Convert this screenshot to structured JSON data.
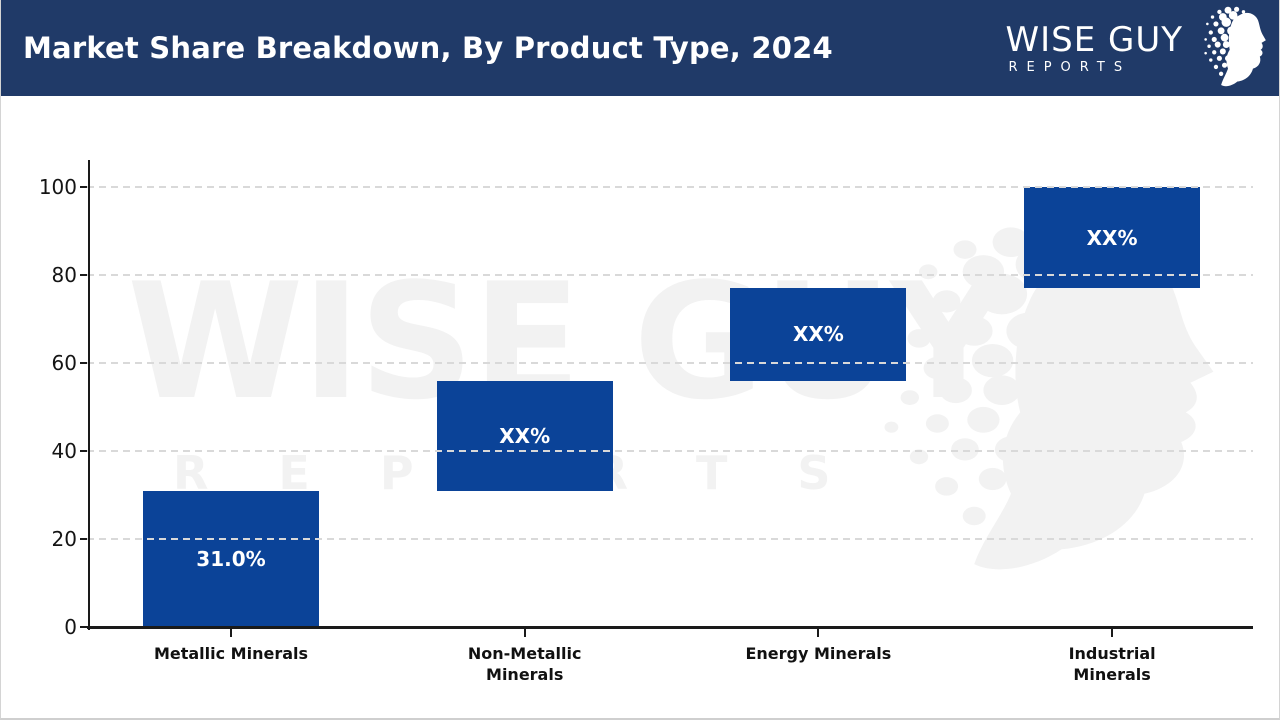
{
  "header": {
    "title": "Market Share Breakdown, By Product Type, 2024",
    "logo": {
      "line1": "WISE GUY",
      "line2": "REPORTS"
    }
  },
  "watermark": {
    "line1": "WISE GUY",
    "line2": "REPORTS"
  },
  "chart_data": {
    "type": "bar",
    "subtype": "waterfall",
    "title": "Market Share Breakdown, By Product Type, 2024",
    "xlabel": "",
    "ylabel": "",
    "ylim": [
      0,
      100
    ],
    "y_ticks": [
      "0",
      "20",
      "40",
      "60",
      "80",
      "100"
    ],
    "grid": "horizontal-dashed",
    "legend": "none",
    "categories": [
      "Metallic Minerals",
      "Non-Metallic\nMinerals",
      "Energy Minerals",
      "Industrial\nMinerals"
    ],
    "segments": [
      {
        "category": "Metallic Minerals",
        "base": 0,
        "top": 31,
        "label": "31.0%"
      },
      {
        "category": "Non-Metallic Minerals",
        "base": 31,
        "top": 56,
        "label": "XX%"
      },
      {
        "category": "Energy Minerals",
        "base": 56,
        "top": 77,
        "label": "XX%"
      },
      {
        "category": "Industrial Minerals",
        "base": 77,
        "top": 100,
        "label": "XX%"
      }
    ],
    "bar_color": "#0B4398",
    "bar_label_color": "#ffffff"
  },
  "colors": {
    "header_bg": "#203A68",
    "header_text": "#ffffff",
    "bar": "#0B4398",
    "grid": "#d9d9d9",
    "axis": "#1a1a1a",
    "watermark": "#f2f2f2"
  }
}
